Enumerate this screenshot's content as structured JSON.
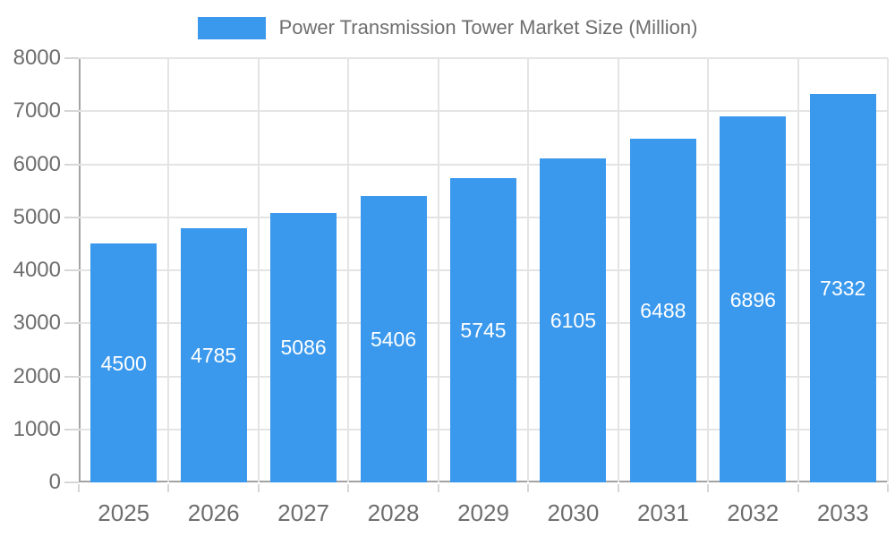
{
  "chart_data": {
    "type": "bar",
    "legend_label": "Power Transmission Tower Market Size (Million)",
    "legend_position": "top",
    "categories": [
      "2025",
      "2026",
      "2027",
      "2028",
      "2029",
      "2030",
      "2031",
      "2032",
      "2033"
    ],
    "values": [
      4500,
      4785,
      5086,
      5406,
      5745,
      6105,
      6488,
      6896,
      7332
    ],
    "ylim": [
      0,
      8000
    ],
    "ytick_step": 1000,
    "ytick_labels": [
      "0",
      "1000",
      "2000",
      "3000",
      "4000",
      "5000",
      "6000",
      "7000",
      "8000"
    ],
    "grid": true,
    "value_labels_inside_bars": true,
    "colors": {
      "bar": "#3B99ED",
      "axis_line": "#a3a3a3",
      "gridline": "#e4e4e4",
      "tick": "#d6d6d6",
      "axis_label": "#6e6e6e",
      "value_label": "#ffffff",
      "background": "#ffffff"
    }
  }
}
